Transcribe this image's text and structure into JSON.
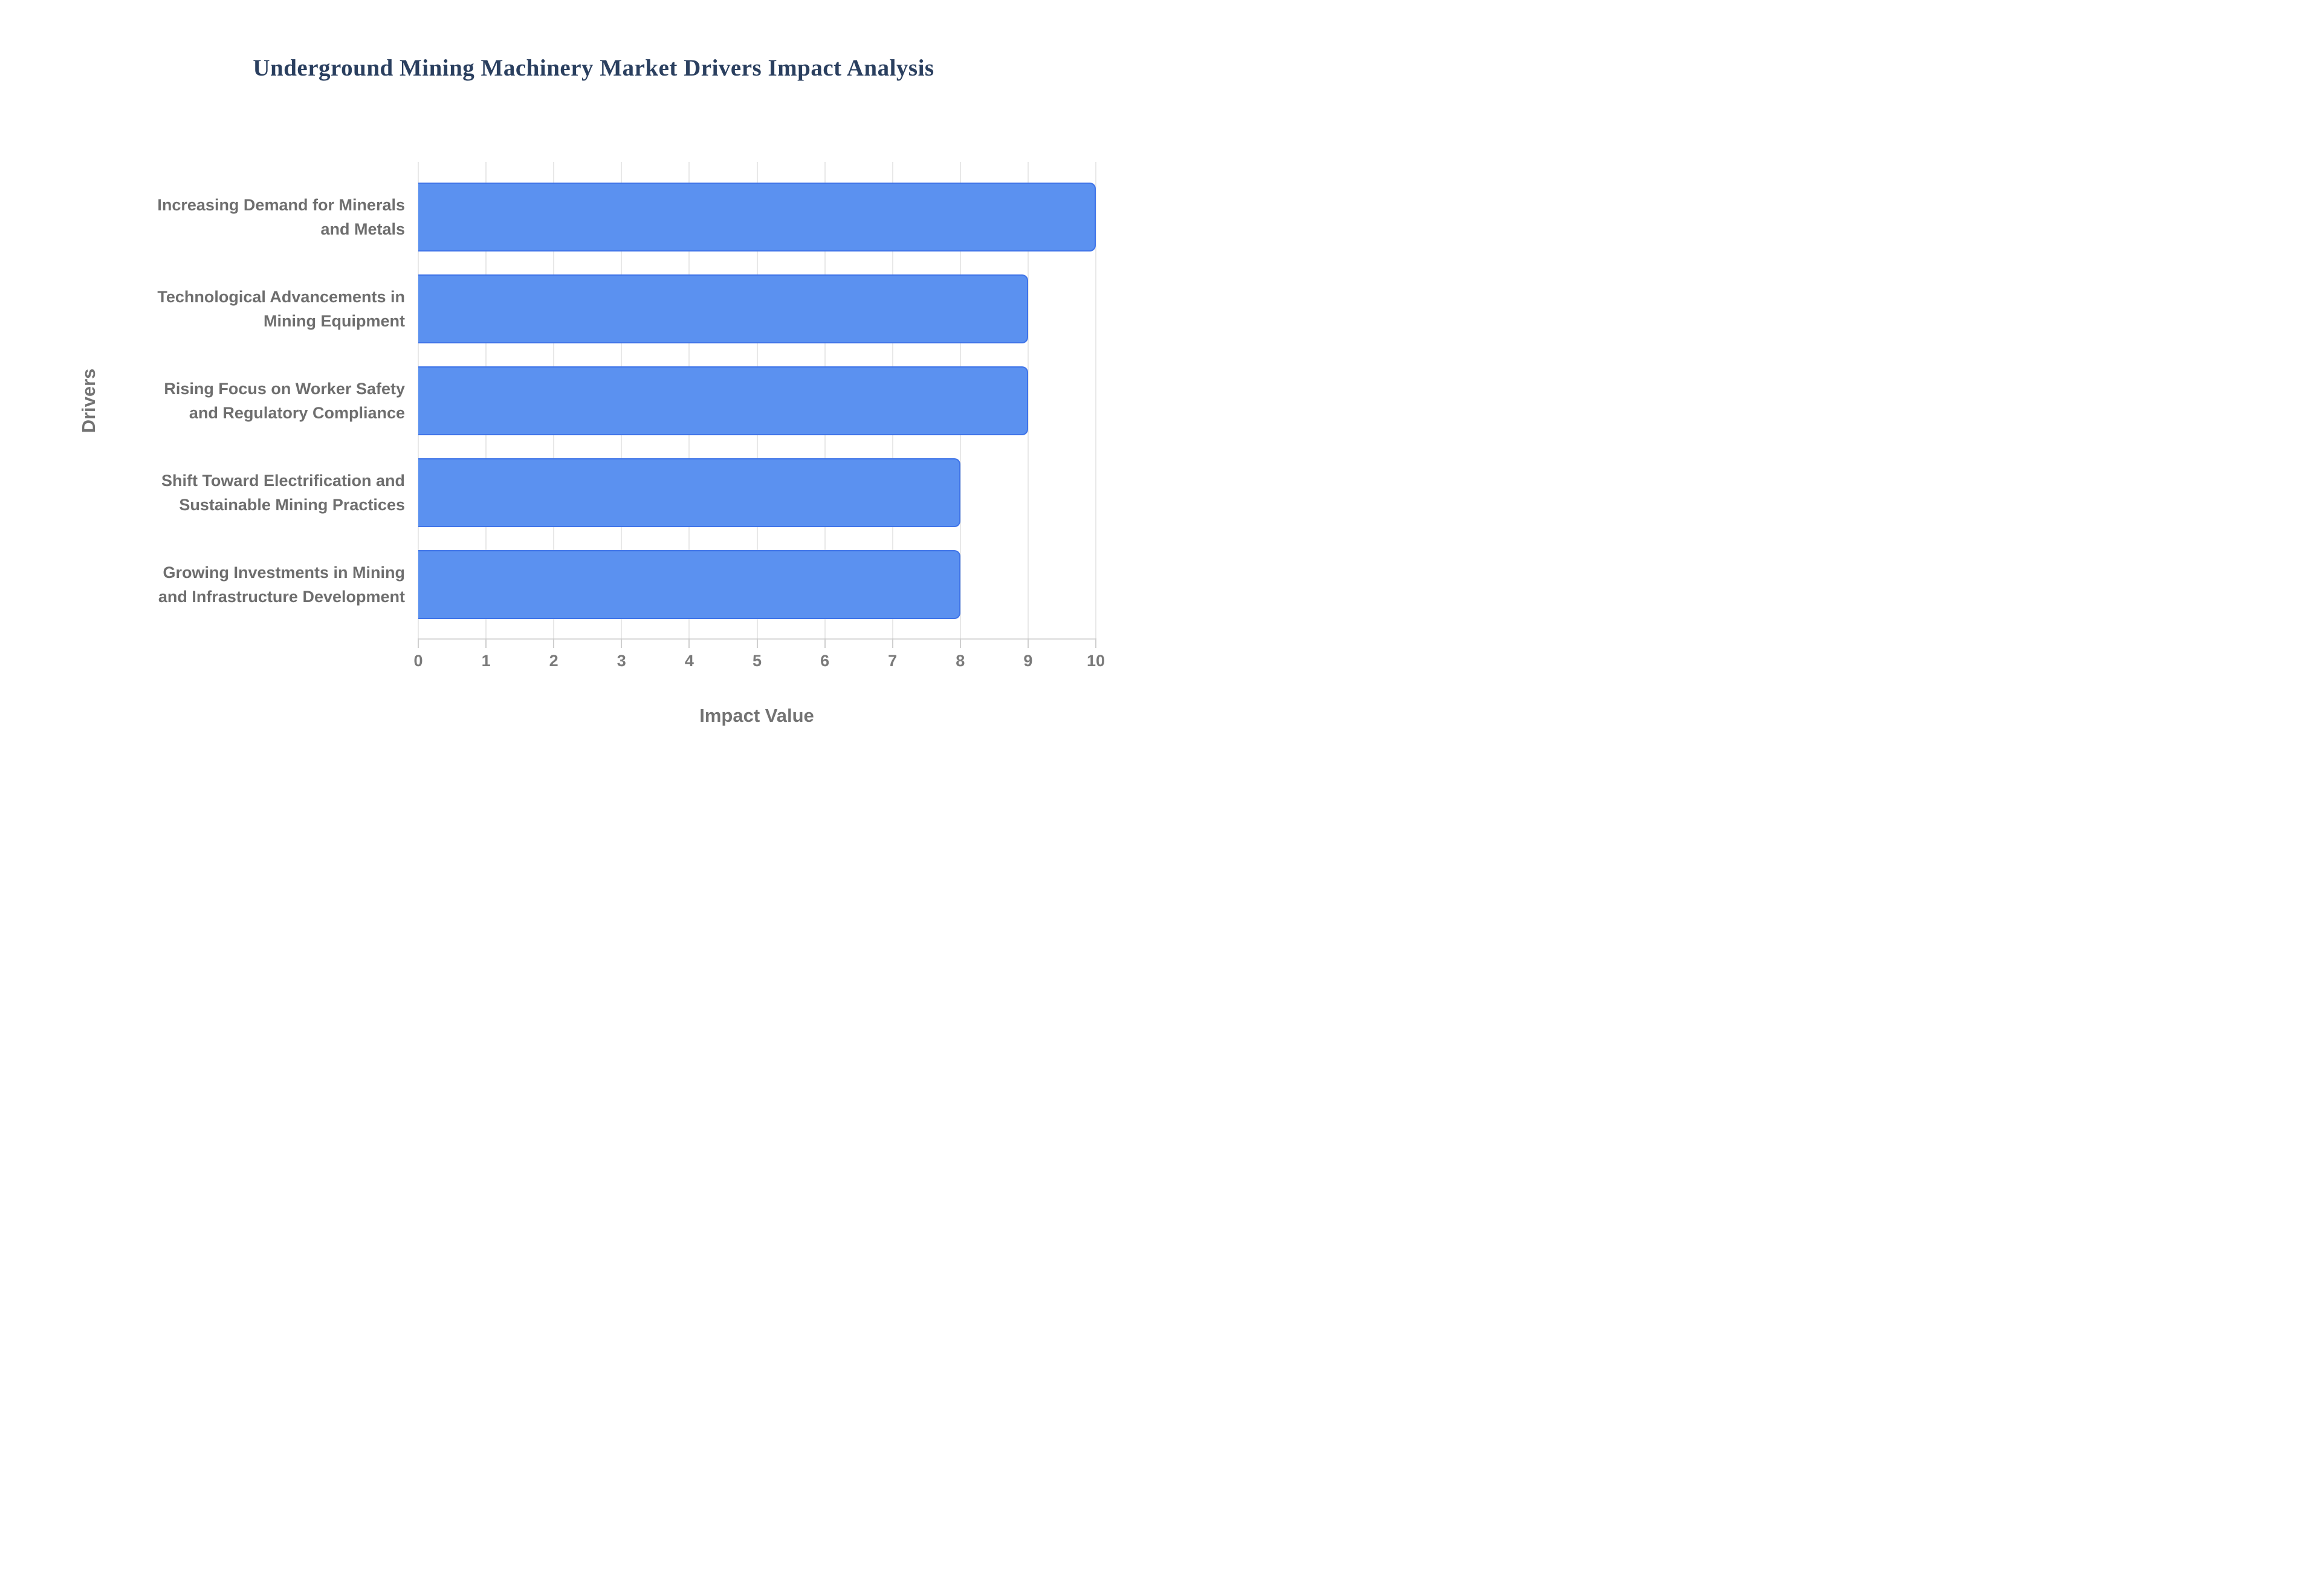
{
  "title": "Underground Mining Machinery Market Drivers Impact Analysis",
  "chart_data": {
    "type": "bar",
    "orientation": "horizontal",
    "title": "Underground Mining Machinery Market Drivers Impact Analysis",
    "categories": [
      "Increasing Demand for Minerals and Metals",
      "Technological Advancements in Mining Equipment",
      "Rising Focus on Worker Safety and Regulatory Compliance",
      "Shift Toward Electrification and Sustainable Mining Practices",
      "Growing Investments in Mining and Infrastructure Development"
    ],
    "values": [
      10,
      9,
      9,
      8,
      8
    ],
    "xlabel": "Impact Value",
    "ylabel": "Drivers",
    "xlim": [
      0,
      10
    ],
    "xticks": [
      0,
      1,
      2,
      3,
      4,
      5,
      6,
      7,
      8,
      9,
      10
    ],
    "grid": true,
    "legend": "none",
    "colors": {
      "bar_fill": "#5b91f0",
      "bar_border": "#3f74e8",
      "gridline": "#e8e8e8",
      "axis_line": "#d9d9d9",
      "title_text": "#2a3f5f",
      "label_text": "#6e6e6e",
      "tick_text": "#7a7a7a"
    }
  }
}
